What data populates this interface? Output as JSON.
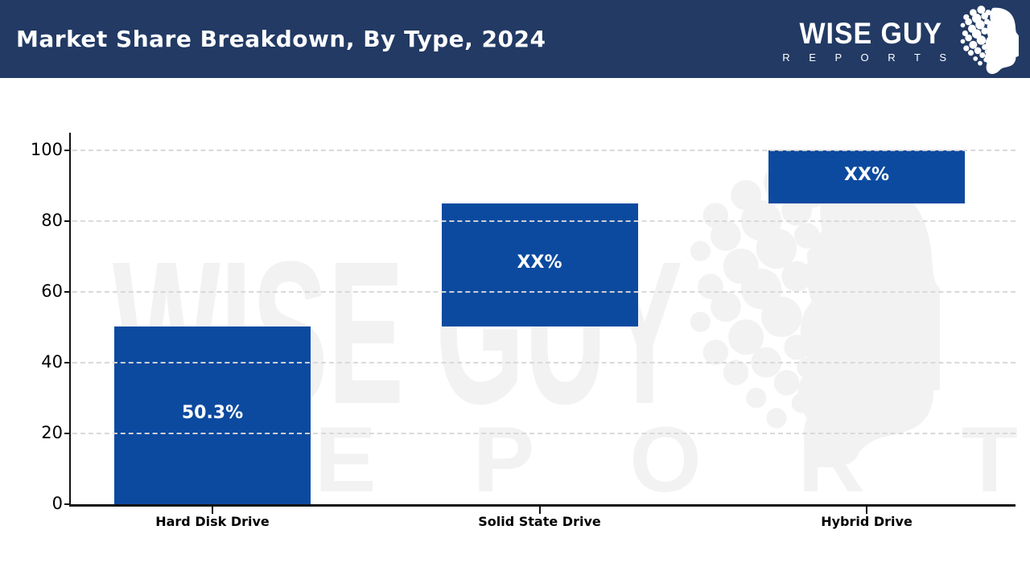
{
  "header": {
    "title": "Market Share Breakdown, By Type, 2024",
    "bg_color": "#223a64",
    "logo": {
      "line1": "WISE GUY",
      "line2": "R E P O R T S"
    }
  },
  "watermark": {
    "line1": "WISE GUY",
    "line2": "R E P O R T S"
  },
  "chart_data": {
    "type": "bar",
    "subtype": "waterfall",
    "title": "Market Share Breakdown, By Type, 2024",
    "categories": [
      "Hard Disk Drive",
      "Solid State Drive",
      "Hybrid Drive"
    ],
    "series": [
      {
        "name": "Market Share (%)",
        "segments": [
          {
            "start": 0,
            "end": 50.3
          },
          {
            "start": 50.3,
            "end": 85
          },
          {
            "start": 85,
            "end": 100
          }
        ]
      }
    ],
    "bar_labels": [
      "50.3%",
      "XX%",
      "XX%"
    ],
    "ylim": [
      0,
      100
    ],
    "yticks": [
      0,
      20,
      40,
      60,
      80,
      100
    ],
    "xlabel": "",
    "ylabel": "",
    "grid": "horizontal-dashed",
    "legend": "none",
    "bar_color": "#0c4aa0",
    "bar_label_color": "#ffffff"
  }
}
